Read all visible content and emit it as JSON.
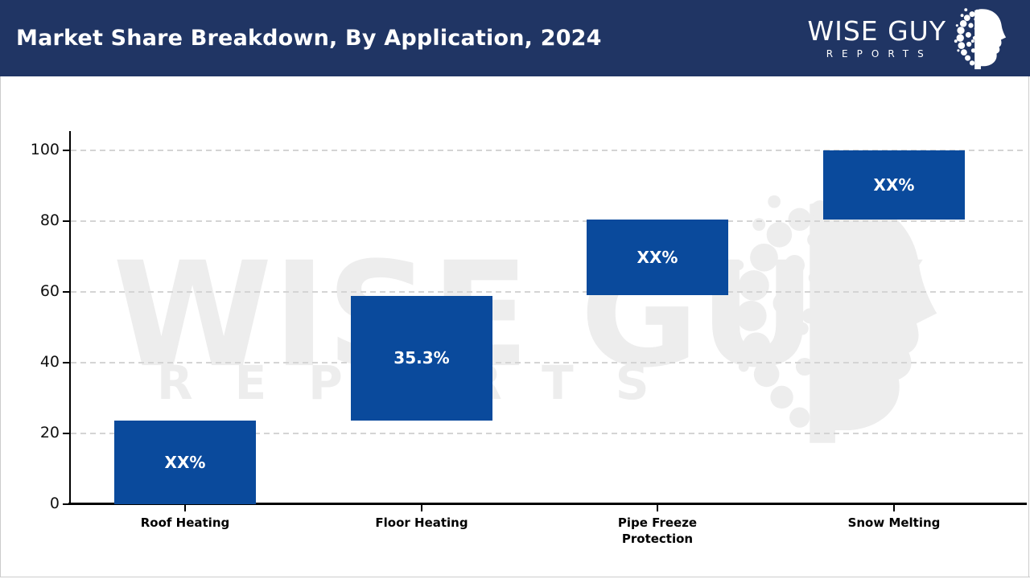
{
  "header": {
    "title": "Market Share Breakdown, By Application, 2024",
    "logo": {
      "line1": "WISE GUY",
      "line2": "REPORTS"
    }
  },
  "watermark": {
    "line1": "WISE GUY",
    "line2": "REPORTS"
  },
  "colors": {
    "header_bg": "#203564",
    "title_text": "#ffffff",
    "bar": "#0a4a9c",
    "bar_label": "#ffffff",
    "grid": "#d4d4d4",
    "axis": "#000000",
    "tick_text": "#111111",
    "watermark": "#ededed",
    "frame_border": "#cccccc"
  },
  "chart_data": {
    "type": "bar",
    "subtype": "waterfall",
    "title": "Market Share Breakdown, By Application, 2024",
    "categories": [
      "Roof Heating",
      "Floor Heating",
      "Pipe Freeze Protection",
      "Snow Melting"
    ],
    "segments": [
      {
        "category": "Roof Heating",
        "start": 0,
        "end": 23.7,
        "label": "XX%"
      },
      {
        "category": "Floor Heating",
        "start": 23.6,
        "end": 58.9,
        "label": "35.3%"
      },
      {
        "category": "Pipe Freeze Protection",
        "start": 59.0,
        "end": 80.5,
        "label": "XX%"
      },
      {
        "category": "Snow Melting",
        "start": 80.5,
        "end": 100.0,
        "label": "XX%"
      }
    ],
    "y_ticks": [
      0,
      20,
      40,
      60,
      80,
      100
    ],
    "ylim": [
      0,
      100
    ],
    "xlabel": "",
    "ylabel": "",
    "grid": "horizontal-dashed",
    "legend": "none"
  }
}
